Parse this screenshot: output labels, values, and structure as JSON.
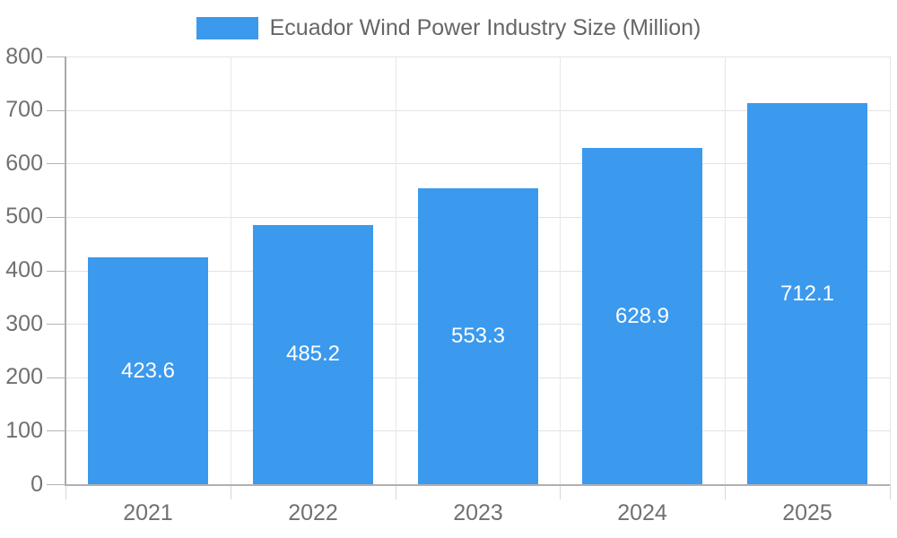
{
  "legend": {
    "label": "Ecuador Wind Power Industry Size (Million)"
  },
  "chart_data": {
    "type": "bar",
    "title": "Ecuador Wind Power Industry Size (Million)",
    "categories": [
      "2021",
      "2022",
      "2023",
      "2024",
      "2025"
    ],
    "values": [
      423.6,
      485.2,
      553.3,
      628.9,
      712.1
    ],
    "value_labels": [
      "423.6",
      "485.2",
      "553.3",
      "628.9",
      "712.1"
    ],
    "xlabel": "",
    "ylabel": "",
    "ylim": [
      0,
      800
    ],
    "ytick_step": 100,
    "ytick_labels": [
      "0",
      "100",
      "200",
      "300",
      "400",
      "500",
      "600",
      "700",
      "800"
    ],
    "grid": true,
    "legend_position": "top-center",
    "colors": {
      "bar": "#3b99ee",
      "value_label": "#ffffff",
      "axis_label": "#707070",
      "legend_label": "#666666",
      "gridline": "#e3e3e3",
      "axis_line": "#aaaaaa",
      "background": "#ffffff"
    }
  }
}
